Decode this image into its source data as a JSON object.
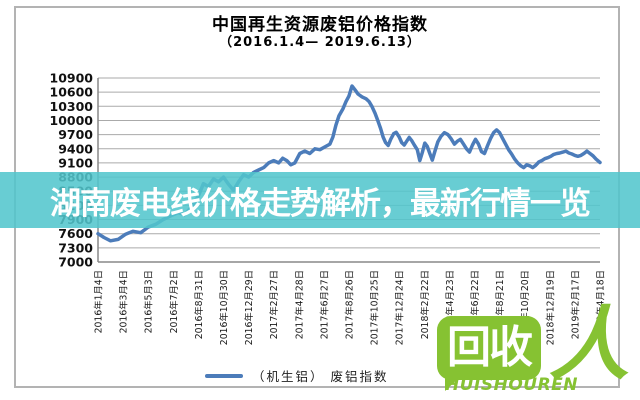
{
  "header": {
    "title": "中国再生资源废铝价格指数",
    "subtitle": "（2016.1.4— 2019.6.13）"
  },
  "banner": {
    "text": "湖南废电线价格走势解析，最新行情一览",
    "bg_color": "rgba(82,197,204,0.87)"
  },
  "legend": {
    "label": "（机生铝） 废铝指数",
    "line_color": "#4c7cba"
  },
  "watermark": {
    "cn": "回收",
    "ren": "人",
    "en": "HUISHOUREN",
    "color": "#86c232"
  },
  "chart_data": {
    "type": "line",
    "title": "中国再生资源废铝价格指数",
    "subtitle": "（2016.1.4— 2019.6.13）",
    "ylabel": "",
    "xlabel": "",
    "ylim": [
      7000,
      10900
    ],
    "ytick_step": 300,
    "yticks": [
      10900,
      10600,
      10300,
      10000,
      9700,
      9400,
      9100,
      8800,
      8500,
      8200,
      7900,
      7600,
      7300,
      7000
    ],
    "x_labels": [
      "2016年1月4日",
      "2016年3月4日",
      "2016年5月3日",
      "2016年7月2日",
      "2016年8月31日",
      "2016年10月30日",
      "2016年12月29日",
      "2017年2月27日",
      "2017年4月28日",
      "2017年6月27日",
      "2017年8月26日",
      "2017年10月25日",
      "2017年12月24日",
      "2018年2月22日",
      "2018年4月23日",
      "2018年6月22日",
      "2018年8月21日",
      "2018年10月20日",
      "2018年12月19日",
      "2019年2月17日",
      "2019年4月18日"
    ],
    "grid": true,
    "legend_position": "bottom",
    "line_color": "#4c7cba",
    "grid_color": "#aaaaaa",
    "series": [
      {
        "name": "（机生铝） 废铝指数",
        "points": [
          [
            0,
            7600
          ],
          [
            0.012,
            7520
          ],
          [
            0.025,
            7450
          ],
          [
            0.04,
            7480
          ],
          [
            0.055,
            7590
          ],
          [
            0.07,
            7650
          ],
          [
            0.085,
            7620
          ],
          [
            0.1,
            7740
          ],
          [
            0.115,
            7800
          ],
          [
            0.13,
            7900
          ],
          [
            0.145,
            7980
          ],
          [
            0.16,
            8050
          ],
          [
            0.172,
            8000
          ],
          [
            0.185,
            8150
          ],
          [
            0.2,
            8400
          ],
          [
            0.21,
            8660
          ],
          [
            0.22,
            8600
          ],
          [
            0.23,
            8760
          ],
          [
            0.24,
            8700
          ],
          [
            0.25,
            8800
          ],
          [
            0.26,
            8650
          ],
          [
            0.27,
            8520
          ],
          [
            0.28,
            8700
          ],
          [
            0.29,
            8850
          ],
          [
            0.3,
            8800
          ],
          [
            0.31,
            8900
          ],
          [
            0.32,
            8950
          ],
          [
            0.33,
            9000
          ],
          [
            0.34,
            9100
          ],
          [
            0.35,
            9150
          ],
          [
            0.36,
            9100
          ],
          [
            0.368,
            9200
          ],
          [
            0.376,
            9150
          ],
          [
            0.384,
            9060
          ],
          [
            0.392,
            9100
          ],
          [
            0.402,
            9300
          ],
          [
            0.412,
            9350
          ],
          [
            0.422,
            9300
          ],
          [
            0.432,
            9400
          ],
          [
            0.442,
            9380
          ],
          [
            0.452,
            9440
          ],
          [
            0.462,
            9500
          ],
          [
            0.468,
            9650
          ],
          [
            0.474,
            9900
          ],
          [
            0.48,
            10100
          ],
          [
            0.488,
            10250
          ],
          [
            0.494,
            10400
          ],
          [
            0.5,
            10520
          ],
          [
            0.506,
            10730
          ],
          [
            0.512,
            10650
          ],
          [
            0.518,
            10560
          ],
          [
            0.526,
            10500
          ],
          [
            0.534,
            10460
          ],
          [
            0.54,
            10400
          ],
          [
            0.546,
            10290
          ],
          [
            0.552,
            10150
          ],
          [
            0.558,
            9980
          ],
          [
            0.563,
            9830
          ],
          [
            0.568,
            9650
          ],
          [
            0.573,
            9530
          ],
          [
            0.578,
            9470
          ],
          [
            0.583,
            9600
          ],
          [
            0.589,
            9720
          ],
          [
            0.594,
            9750
          ],
          [
            0.6,
            9650
          ],
          [
            0.605,
            9530
          ],
          [
            0.61,
            9480
          ],
          [
            0.615,
            9560
          ],
          [
            0.62,
            9640
          ],
          [
            0.625,
            9570
          ],
          [
            0.63,
            9480
          ],
          [
            0.636,
            9380
          ],
          [
            0.641,
            9150
          ],
          [
            0.646,
            9320
          ],
          [
            0.651,
            9520
          ],
          [
            0.656,
            9450
          ],
          [
            0.661,
            9300
          ],
          [
            0.666,
            9160
          ],
          [
            0.671,
            9340
          ],
          [
            0.677,
            9550
          ],
          [
            0.683,
            9660
          ],
          [
            0.69,
            9740
          ],
          [
            0.697,
            9700
          ],
          [
            0.703,
            9620
          ],
          [
            0.71,
            9500
          ],
          [
            0.716,
            9560
          ],
          [
            0.722,
            9600
          ],
          [
            0.728,
            9500
          ],
          [
            0.734,
            9400
          ],
          [
            0.74,
            9330
          ],
          [
            0.746,
            9480
          ],
          [
            0.752,
            9600
          ],
          [
            0.758,
            9500
          ],
          [
            0.764,
            9340
          ],
          [
            0.77,
            9300
          ],
          [
            0.776,
            9470
          ],
          [
            0.782,
            9620
          ],
          [
            0.788,
            9740
          ],
          [
            0.794,
            9800
          ],
          [
            0.8,
            9740
          ],
          [
            0.806,
            9620
          ],
          [
            0.812,
            9500
          ],
          [
            0.818,
            9380
          ],
          [
            0.824,
            9290
          ],
          [
            0.83,
            9180
          ],
          [
            0.836,
            9100
          ],
          [
            0.842,
            9040
          ],
          [
            0.848,
            9000
          ],
          [
            0.854,
            9060
          ],
          [
            0.86,
            9040
          ],
          [
            0.866,
            9000
          ],
          [
            0.872,
            9050
          ],
          [
            0.878,
            9120
          ],
          [
            0.884,
            9150
          ],
          [
            0.89,
            9190
          ],
          [
            0.896,
            9210
          ],
          [
            0.902,
            9240
          ],
          [
            0.908,
            9280
          ],
          [
            0.914,
            9300
          ],
          [
            0.92,
            9310
          ],
          [
            0.926,
            9330
          ],
          [
            0.932,
            9350
          ],
          [
            0.938,
            9310
          ],
          [
            0.944,
            9290
          ],
          [
            0.95,
            9260
          ],
          [
            0.956,
            9240
          ],
          [
            0.962,
            9260
          ],
          [
            0.968,
            9300
          ],
          [
            0.974,
            9350
          ],
          [
            0.98,
            9300
          ],
          [
            0.986,
            9250
          ],
          [
            0.992,
            9180
          ],
          [
            1,
            9110
          ]
        ]
      }
    ]
  }
}
